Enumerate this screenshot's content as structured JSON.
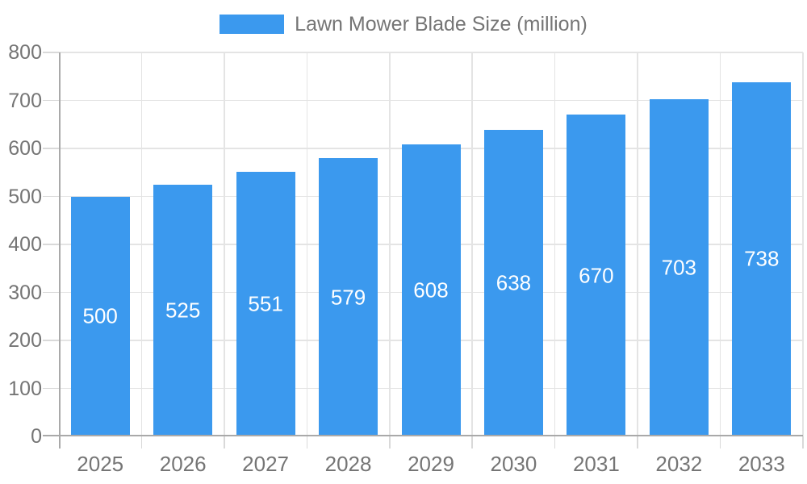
{
  "legend": {
    "label": "Lawn Mower Blade Size (million)"
  },
  "chart_data": {
    "type": "bar",
    "title": "Lawn Mower Blade Size (million)",
    "categories": [
      "2025",
      "2026",
      "2027",
      "2028",
      "2029",
      "2030",
      "2031",
      "2032",
      "2033"
    ],
    "values": [
      500,
      525,
      551,
      579,
      608,
      638,
      670,
      703,
      738
    ],
    "series": [
      {
        "name": "Lawn Mower Blade Size (million)",
        "values": [
          500,
          525,
          551,
          579,
          608,
          638,
          670,
          703,
          738
        ]
      }
    ],
    "bar_value_labels": [
      "500",
      "525",
      "551",
      "579",
      "608",
      "638",
      "670",
      "703",
      "738"
    ],
    "xlabel": "",
    "ylabel": "",
    "ylim": [
      0,
      800
    ],
    "yticks": [
      0,
      100,
      200,
      300,
      400,
      500,
      600,
      700,
      800
    ],
    "grid": true,
    "grid_vertical": true,
    "legend_position": "top-center",
    "colors": {
      "bar": "#3B99EE",
      "bar_label": "#FFFFFF",
      "axis_text": "#757575",
      "grid": "#E4E4E4",
      "tick": "#D9D9D9",
      "axis_line": "#A9A9A9",
      "background": "#FFFFFF"
    }
  }
}
